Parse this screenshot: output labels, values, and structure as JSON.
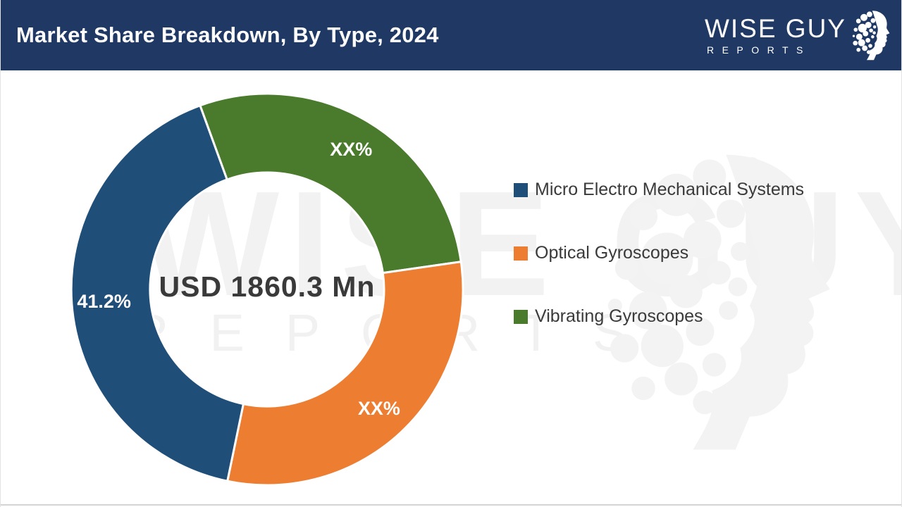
{
  "header": {
    "title": "Market Share Breakdown, By Type, 2024",
    "bg_color": "#1f3864",
    "logo": {
      "line1": "WISE GUY",
      "line2": "REPORTS"
    }
  },
  "watermark": {
    "line1": "WISE GUY",
    "line2": "REPORTS"
  },
  "chart_data": {
    "type": "pie",
    "subtype": "donut",
    "title": "Market Share Breakdown, By Type, 2024",
    "center_label": "USD 1860.3 Mn",
    "legend_position": "right",
    "start_angle_deg": -20,
    "draw_order": [
      2,
      1,
      0
    ],
    "slices": [
      {
        "label": "Micro Electro Mechanical Systems",
        "display_value": "41.2%",
        "value_pct": 41.2,
        "color": "#1f4e79"
      },
      {
        "label": "Optical Gyroscopes",
        "display_value": "XX%",
        "value_pct": 30.5,
        "estimated": true,
        "color": "#ed7d31"
      },
      {
        "label": "Vibrating Gyroscopes",
        "display_value": "XX%",
        "value_pct": 28.3,
        "estimated": true,
        "color": "#4a7a2b"
      }
    ]
  },
  "legend": {
    "items": [
      {
        "label": "Micro Electro Mechanical Systems",
        "color": "#1f4e79"
      },
      {
        "label": "Optical Gyroscopes",
        "color": "#ed7d31"
      },
      {
        "label": "Vibrating Gyroscopes",
        "color": "#4a7a2b"
      }
    ]
  }
}
